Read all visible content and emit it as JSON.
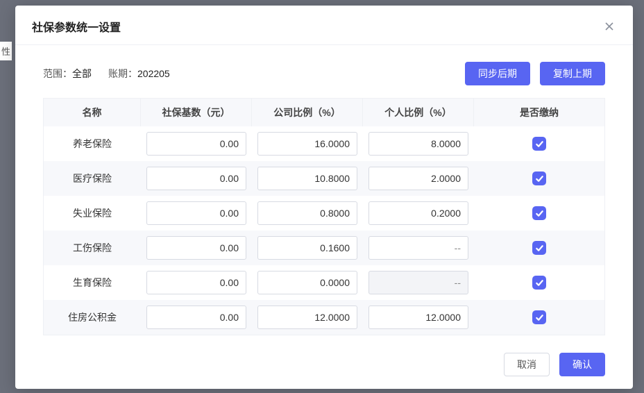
{
  "sideFragment": "性",
  "modal": {
    "title": "社保参数统一设置",
    "scope": {
      "label": "范围：",
      "value": "全部"
    },
    "period": {
      "label": "账期：",
      "value": "202205"
    },
    "syncButton": "同步后期",
    "copyButton": "复制上期"
  },
  "table": {
    "headers": {
      "name": "名称",
      "base": "社保基数（元）",
      "company": "公司比例（%）",
      "personal": "个人比例（%）",
      "pay": "是否缴纳"
    },
    "rows": [
      {
        "name": "养老保险",
        "base": "0.00",
        "company": "16.0000",
        "personal": "8.0000",
        "personalDisabled": false,
        "alt": false
      },
      {
        "name": "医疗保险",
        "base": "0.00",
        "company": "10.8000",
        "personal": "2.0000",
        "personalDisabled": false,
        "alt": true
      },
      {
        "name": "失业保险",
        "base": "0.00",
        "company": "0.8000",
        "personal": "0.2000",
        "personalDisabled": false,
        "alt": false
      },
      {
        "name": "工伤保险",
        "base": "0.00",
        "company": "0.1600",
        "personal": "--",
        "personalDisabled": true,
        "alt": true
      },
      {
        "name": "生育保险",
        "base": "0.00",
        "company": "0.0000",
        "personal": "--",
        "personalDisabled": true,
        "alt": false
      },
      {
        "name": "住房公积金",
        "base": "0.00",
        "company": "12.0000",
        "personal": "12.0000",
        "personalDisabled": false,
        "alt": true
      }
    ]
  },
  "footer": {
    "cancel": "取消",
    "confirm": "确认"
  },
  "colors": {
    "primary": "#5865f2",
    "border": "#d7dae2",
    "headerBg": "#f7f8fb"
  }
}
